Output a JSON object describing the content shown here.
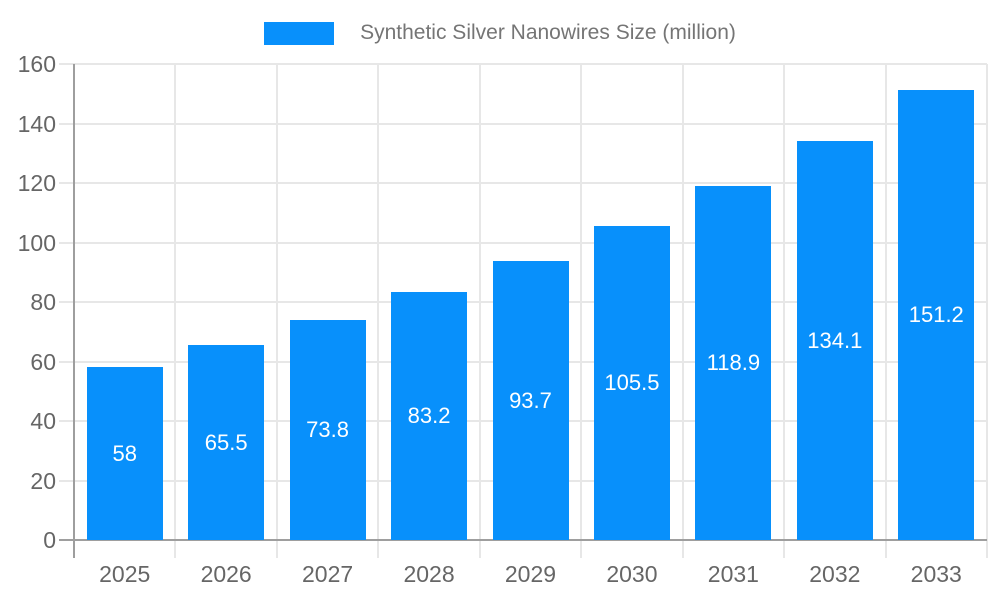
{
  "legend": {
    "label": "Synthetic Silver Nanowires Size (million)"
  },
  "chart_data": {
    "type": "bar",
    "title": "Synthetic Silver Nanowires Size (million)",
    "categories": [
      "2025",
      "2026",
      "2027",
      "2028",
      "2029",
      "2030",
      "2031",
      "2032",
      "2033"
    ],
    "values": [
      58,
      65.5,
      73.8,
      83.2,
      93.7,
      105.5,
      118.9,
      134.1,
      151.2
    ],
    "bar_labels": [
      "58",
      "65.5",
      "73.8",
      "83.2",
      "93.7",
      "105.5",
      "118.9",
      "134.1",
      "151.2"
    ],
    "xlabel": "",
    "ylabel": "",
    "ylim": [
      0,
      160
    ],
    "yticks": [
      0,
      20,
      40,
      60,
      80,
      100,
      120,
      140,
      160
    ],
    "grid": true,
    "legend_position": "top-center",
    "colors": {
      "bar": "#0890FB",
      "bar_label_text": "#ffffff",
      "gridline": "#e7e7e7",
      "axis_line": "#9e9e9e",
      "tick_label": "#666666",
      "legend_text": "#757575",
      "background": "#ffffff"
    }
  }
}
